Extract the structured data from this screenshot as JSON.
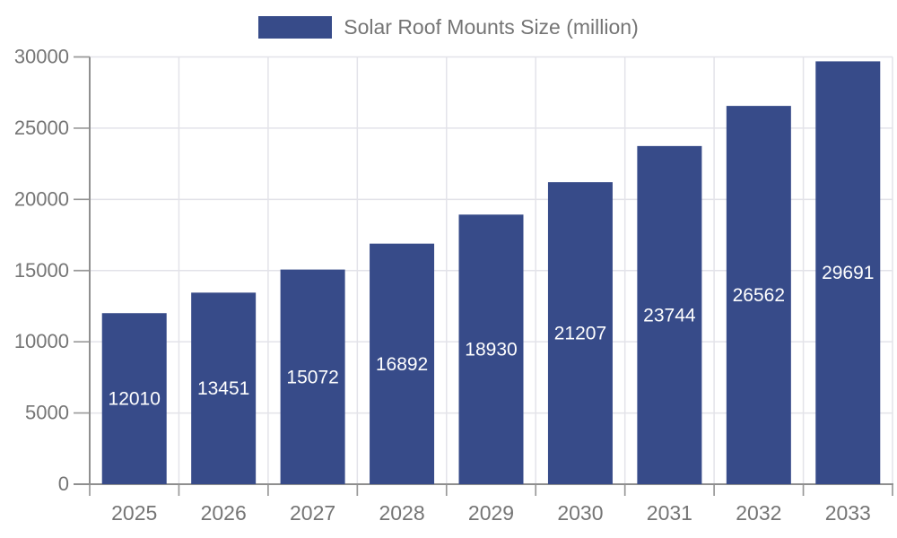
{
  "legend": {
    "label": "Solar Roof Mounts Size (million)"
  },
  "chart_data": {
    "type": "bar",
    "title": "Solar Roof Mounts Size (million)",
    "series_name": "Solar Roof Mounts Size (million)",
    "categories": [
      "2025",
      "2026",
      "2027",
      "2028",
      "2029",
      "2030",
      "2031",
      "2032",
      "2033"
    ],
    "values": [
      12010,
      13451,
      15072,
      16892,
      18930,
      21207,
      23744,
      26562,
      29691
    ],
    "xlabel": "",
    "ylabel": "",
    "ylim": [
      0,
      30000
    ],
    "yticks": [
      0,
      5000,
      10000,
      15000,
      20000,
      25000,
      30000
    ],
    "grid": true,
    "legend_position": "top-center",
    "bar_value_labels": "inside-center-white"
  },
  "colors": {
    "bar": "#374B89",
    "bar_label": "#ffffff",
    "axis": "#8f8f8f",
    "tick": "#999999",
    "tick_label": "#757575",
    "legend_text": "#757575",
    "grid": "#e3e3e9",
    "background": "#ffffff"
  }
}
